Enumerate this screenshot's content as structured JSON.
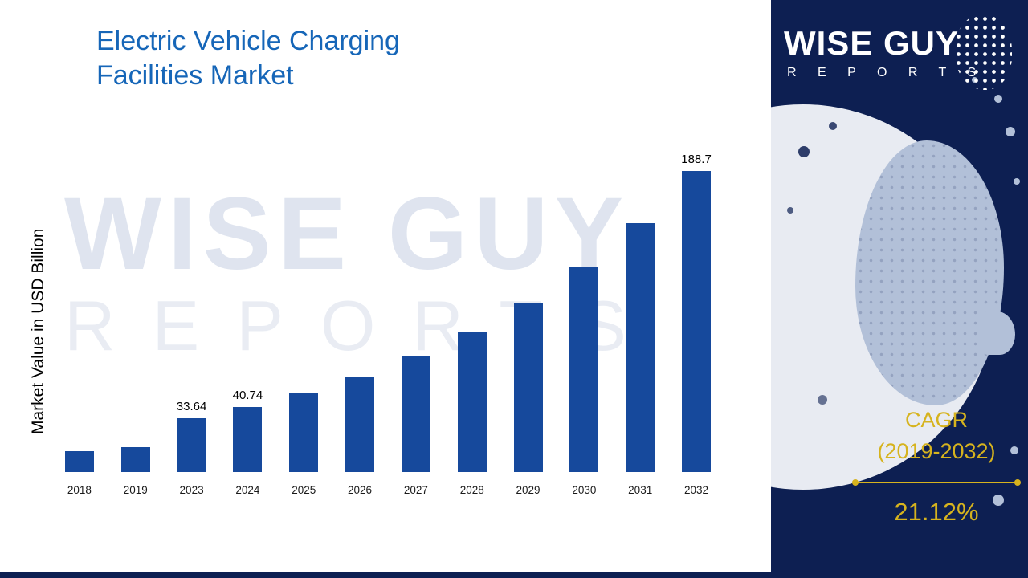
{
  "header": {
    "title_line1": "Electric Vehicle Charging",
    "title_line2": "Facilities Market"
  },
  "axis": {
    "ylabel": "Market Value in USD Billion"
  },
  "watermark": {
    "line1": "WISE GUY",
    "line2": "REPORTS"
  },
  "logo": {
    "line1": "WISE GUY",
    "line2": "R E P O R T S"
  },
  "cagr": {
    "label": "CAGR",
    "range": "(2019-2032)",
    "value": "21.12%"
  },
  "colors": {
    "bar": "#16499c",
    "panel": "#0d1f52",
    "gold": "#d6b31e",
    "title": "#1666b8"
  },
  "chart_data": {
    "type": "bar",
    "title": "Electric Vehicle Charging Facilities Market",
    "ylabel": "Market Value in USD Billion",
    "categories": [
      "2018",
      "2019",
      "2023",
      "2024",
      "2025",
      "2026",
      "2027",
      "2028",
      "2029",
      "2030",
      "2031",
      "2032"
    ],
    "values": [
      12.9,
      15.7,
      33.64,
      40.74,
      49.4,
      59.8,
      72.4,
      87.7,
      106.3,
      128.7,
      155.9,
      188.7
    ],
    "value_labels": [
      "",
      "",
      "33.64",
      "40.74",
      "",
      "",
      "",
      "",
      "",
      "",
      "",
      "188.7"
    ],
    "bar_color": "#16499c",
    "ylim": [
      0,
      200
    ],
    "grid": false,
    "legend": false,
    "note_labeled_points": {
      "2023": 33.64,
      "2024": 40.74,
      "2032": 188.7
    }
  }
}
